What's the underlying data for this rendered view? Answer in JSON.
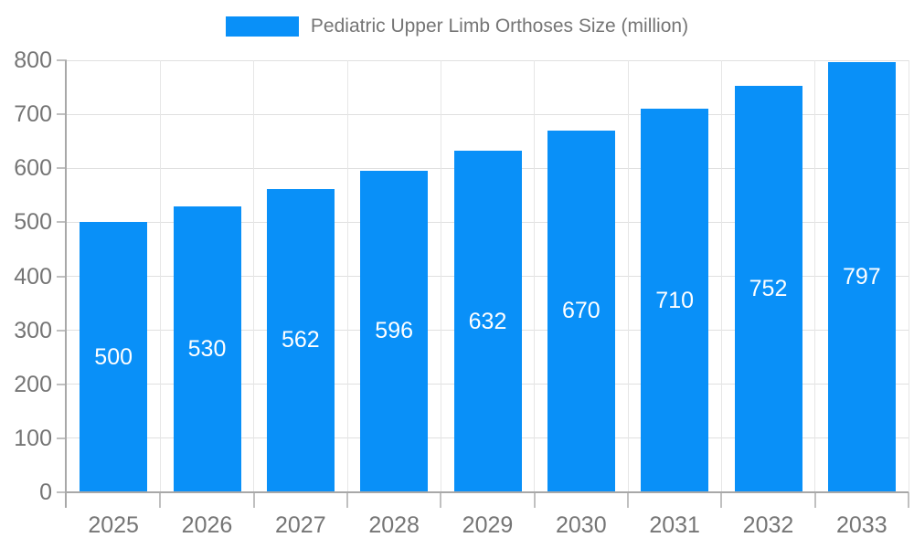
{
  "legend": {
    "label": "Pediatric Upper Limb Orthoses Size (million)"
  },
  "colors": {
    "bar": "#0990f8",
    "grid": "#e0e0e0",
    "axis": "#a8a8a8",
    "tick": "#c0c0c0",
    "text": "#757575",
    "value_label": "#ffffff",
    "background": "#ffffff"
  },
  "chart_data": {
    "type": "bar",
    "title": "Pediatric Upper Limb Orthoses Size (million)",
    "categories": [
      "2025",
      "2026",
      "2027",
      "2028",
      "2029",
      "2030",
      "2031",
      "2032",
      "2033"
    ],
    "values": [
      500,
      530,
      562,
      596,
      632,
      670,
      710,
      752,
      797
    ],
    "xlabel": "",
    "ylabel": "",
    "ylim": [
      0,
      800
    ],
    "y_ticks": [
      0,
      100,
      200,
      300,
      400,
      500,
      600,
      700,
      800
    ],
    "grid": true,
    "legend_position": "top",
    "value_label_position": "inside-center"
  }
}
